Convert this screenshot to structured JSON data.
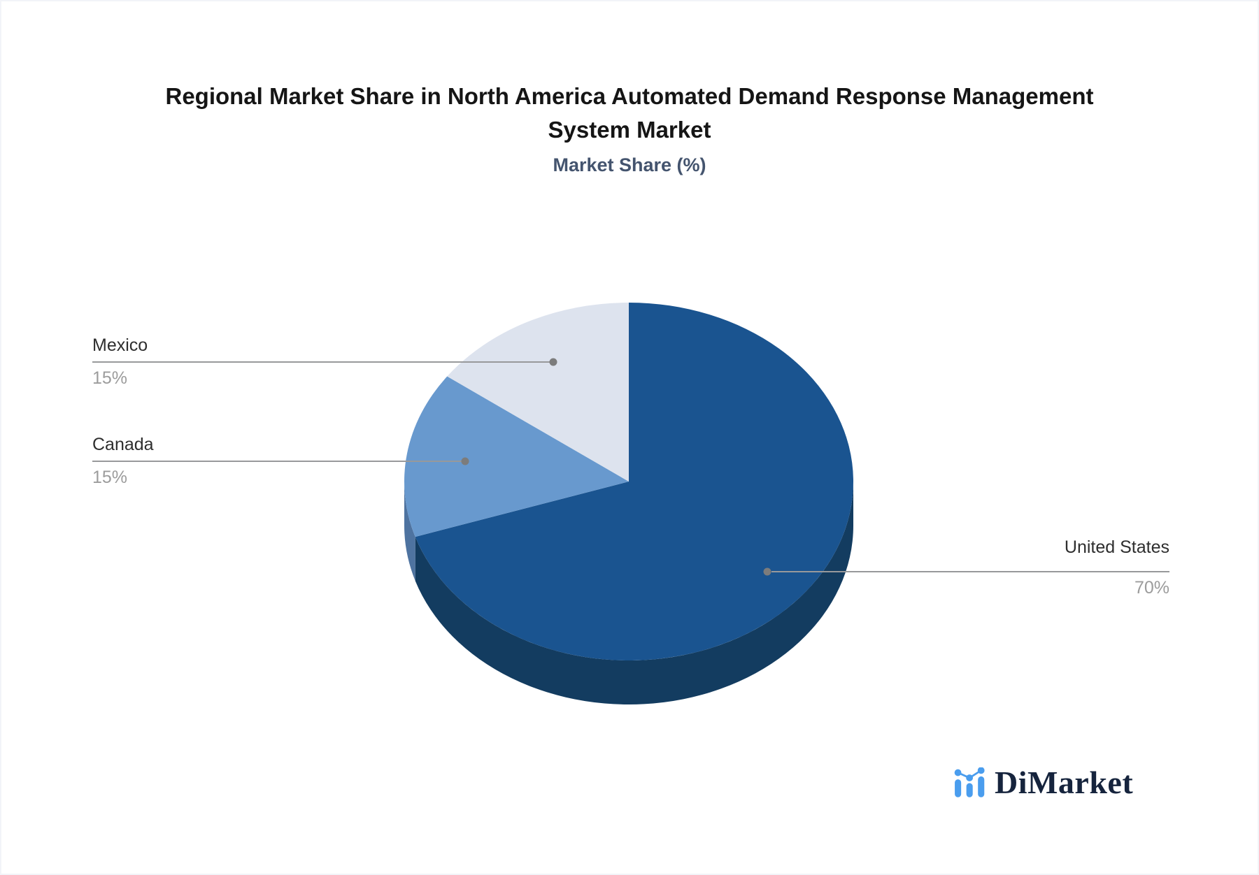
{
  "header": {
    "title_line1": "Regional Market Share in North America Automated Demand Response Management",
    "title_line2": "System Market",
    "subtitle": "Market Share (%)"
  },
  "chart_data": {
    "type": "pie",
    "title": "Regional Market Share in North America Automated Demand Response Management System Market",
    "subtitle": "Market Share (%)",
    "unit": "%",
    "style": "3d-pie",
    "start_angle_clockwise_from_top_deg": 0,
    "series": [
      {
        "name": "United States",
        "value": 70,
        "label": "70%",
        "color": "#1A5490",
        "side_color": "#133C60"
      },
      {
        "name": "Canada",
        "value": 15,
        "label": "15%",
        "color": "#6899CE",
        "side_color": "#4E73A0"
      },
      {
        "name": "Mexico",
        "value": 15,
        "label": "15%",
        "color": "#DDE3EE",
        "side_color": "#B8C4D8"
      }
    ],
    "legend": "off",
    "callout_labels": "on"
  },
  "callouts": {
    "mexico": {
      "name": "Mexico",
      "pct": "15%"
    },
    "canada": {
      "name": "Canada",
      "pct": "15%"
    },
    "united_states": {
      "name": "United States",
      "pct": "70%"
    }
  },
  "logo": {
    "text": "DiMarket"
  },
  "colors": {
    "title": "#151515",
    "subtitle": "#44546E",
    "label_name": "#2E2E2E",
    "label_pct": "#9C9C9C",
    "leader_line": "#98999B",
    "leader_dot": "#7C7C7C",
    "logo_blue": "#4A9DEE",
    "logo_navy": "#16243D",
    "background": "#FFFFFF"
  }
}
